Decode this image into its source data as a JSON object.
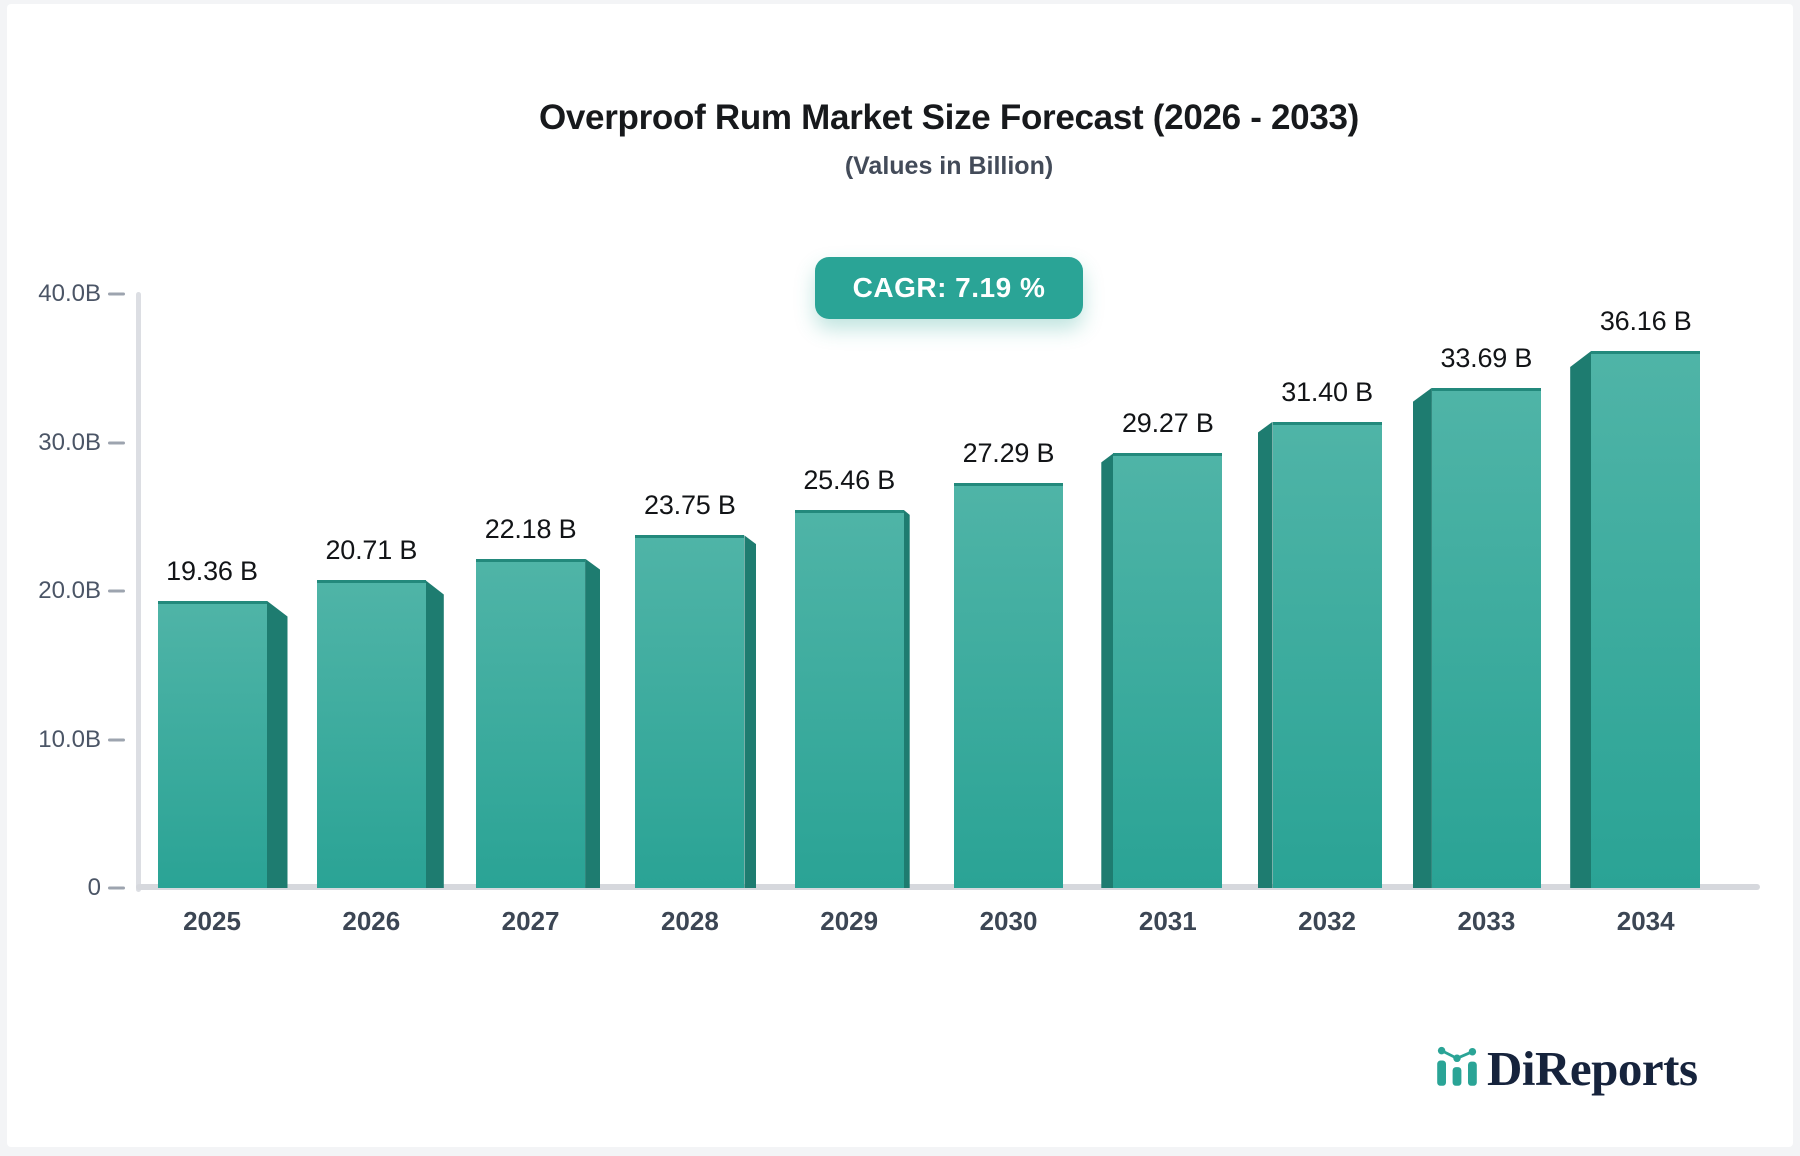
{
  "page": {
    "background": "#f3f4f6",
    "card_background": "#ffffff"
  },
  "header": {
    "title": "Overproof Rum Market Size Forecast (2026 - 2033)",
    "subtitle": "(Values in Billion)"
  },
  "cagr_badge": {
    "label": "CAGR: 7.19 %",
    "background": "#2aa496",
    "text_color": "#ffffff"
  },
  "brand": {
    "name": "DiReports",
    "icon": "mini-bar-line-chart-icon",
    "text_color": "#16233c",
    "icon_color": "#2aa496"
  },
  "chart_data": {
    "type": "bar",
    "title": "Overproof Rum Market Size Forecast (2026 - 2033)",
    "subtitle": "(Values in Billion)",
    "categories": [
      "2025",
      "2026",
      "2027",
      "2028",
      "2029",
      "2030",
      "2031",
      "2032",
      "2033",
      "2034"
    ],
    "values": [
      19.36,
      20.71,
      22.18,
      23.75,
      25.46,
      27.29,
      29.27,
      31.4,
      33.69,
      36.16
    ],
    "value_labels": [
      "19.36 B",
      "20.71 B",
      "22.18 B",
      "23.75 B",
      "25.46 B",
      "27.29 B",
      "29.27 B",
      "31.40 B",
      "33.69 B",
      "36.16 B"
    ],
    "xlabel": "",
    "ylabel": "",
    "ylim": [
      0,
      40
    ],
    "yticks": [
      {
        "value": 0,
        "label": "0"
      },
      {
        "value": 10,
        "label": "10.0B"
      },
      {
        "value": 20,
        "label": "20.0B"
      },
      {
        "value": 30,
        "label": "30.0B"
      },
      {
        "value": 40,
        "label": "40.0B"
      }
    ],
    "grid": false,
    "legend": false,
    "bar_style": {
      "effect": "3d",
      "front_top": "#4fb4a7",
      "front_bottom": "#2aa395",
      "side": "#1e7c70",
      "top_edge": "#23897c"
    }
  }
}
